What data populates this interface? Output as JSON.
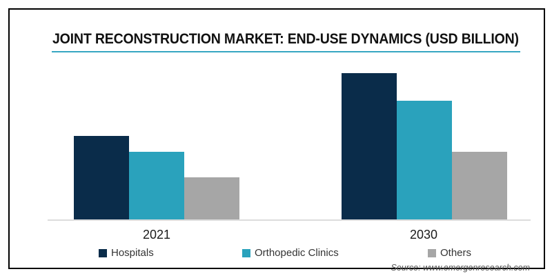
{
  "page": {
    "background_color": "#ffffff",
    "frame_border_color": "#000000"
  },
  "title": "JOINT RECONSTRUCTION MARKET: END-USE DYNAMICS (USD BILLION)",
  "title_underline_color": "#36A6C2",
  "chart_data": {
    "type": "bar",
    "title": "JOINT RECONSTRUCTION MARKET: END-USE DYNAMICS (USD BILLION)",
    "categories": [
      "2021",
      "2030"
    ],
    "series": [
      {
        "name": "Hospitals",
        "color": "#0A2C4A",
        "values": [
          57,
          100
        ]
      },
      {
        "name": "Orthopedic Clinics",
        "color": "#2AA2BC",
        "values": [
          46,
          81
        ]
      },
      {
        "name": "Others",
        "color": "#A6A6A6",
        "values": [
          29,
          46
        ]
      }
    ],
    "xlabel": "",
    "ylabel": "USD Billion",
    "value_units": "relative scale (y-axis unlabeled in image, max bar = 100)",
    "ylim": [
      0,
      100
    ],
    "grid": false,
    "y_axis_visible": false,
    "legend_position": "bottom",
    "axis_line_color": "#DCDCDC"
  },
  "source": "Source: www.emergenresearch.com"
}
